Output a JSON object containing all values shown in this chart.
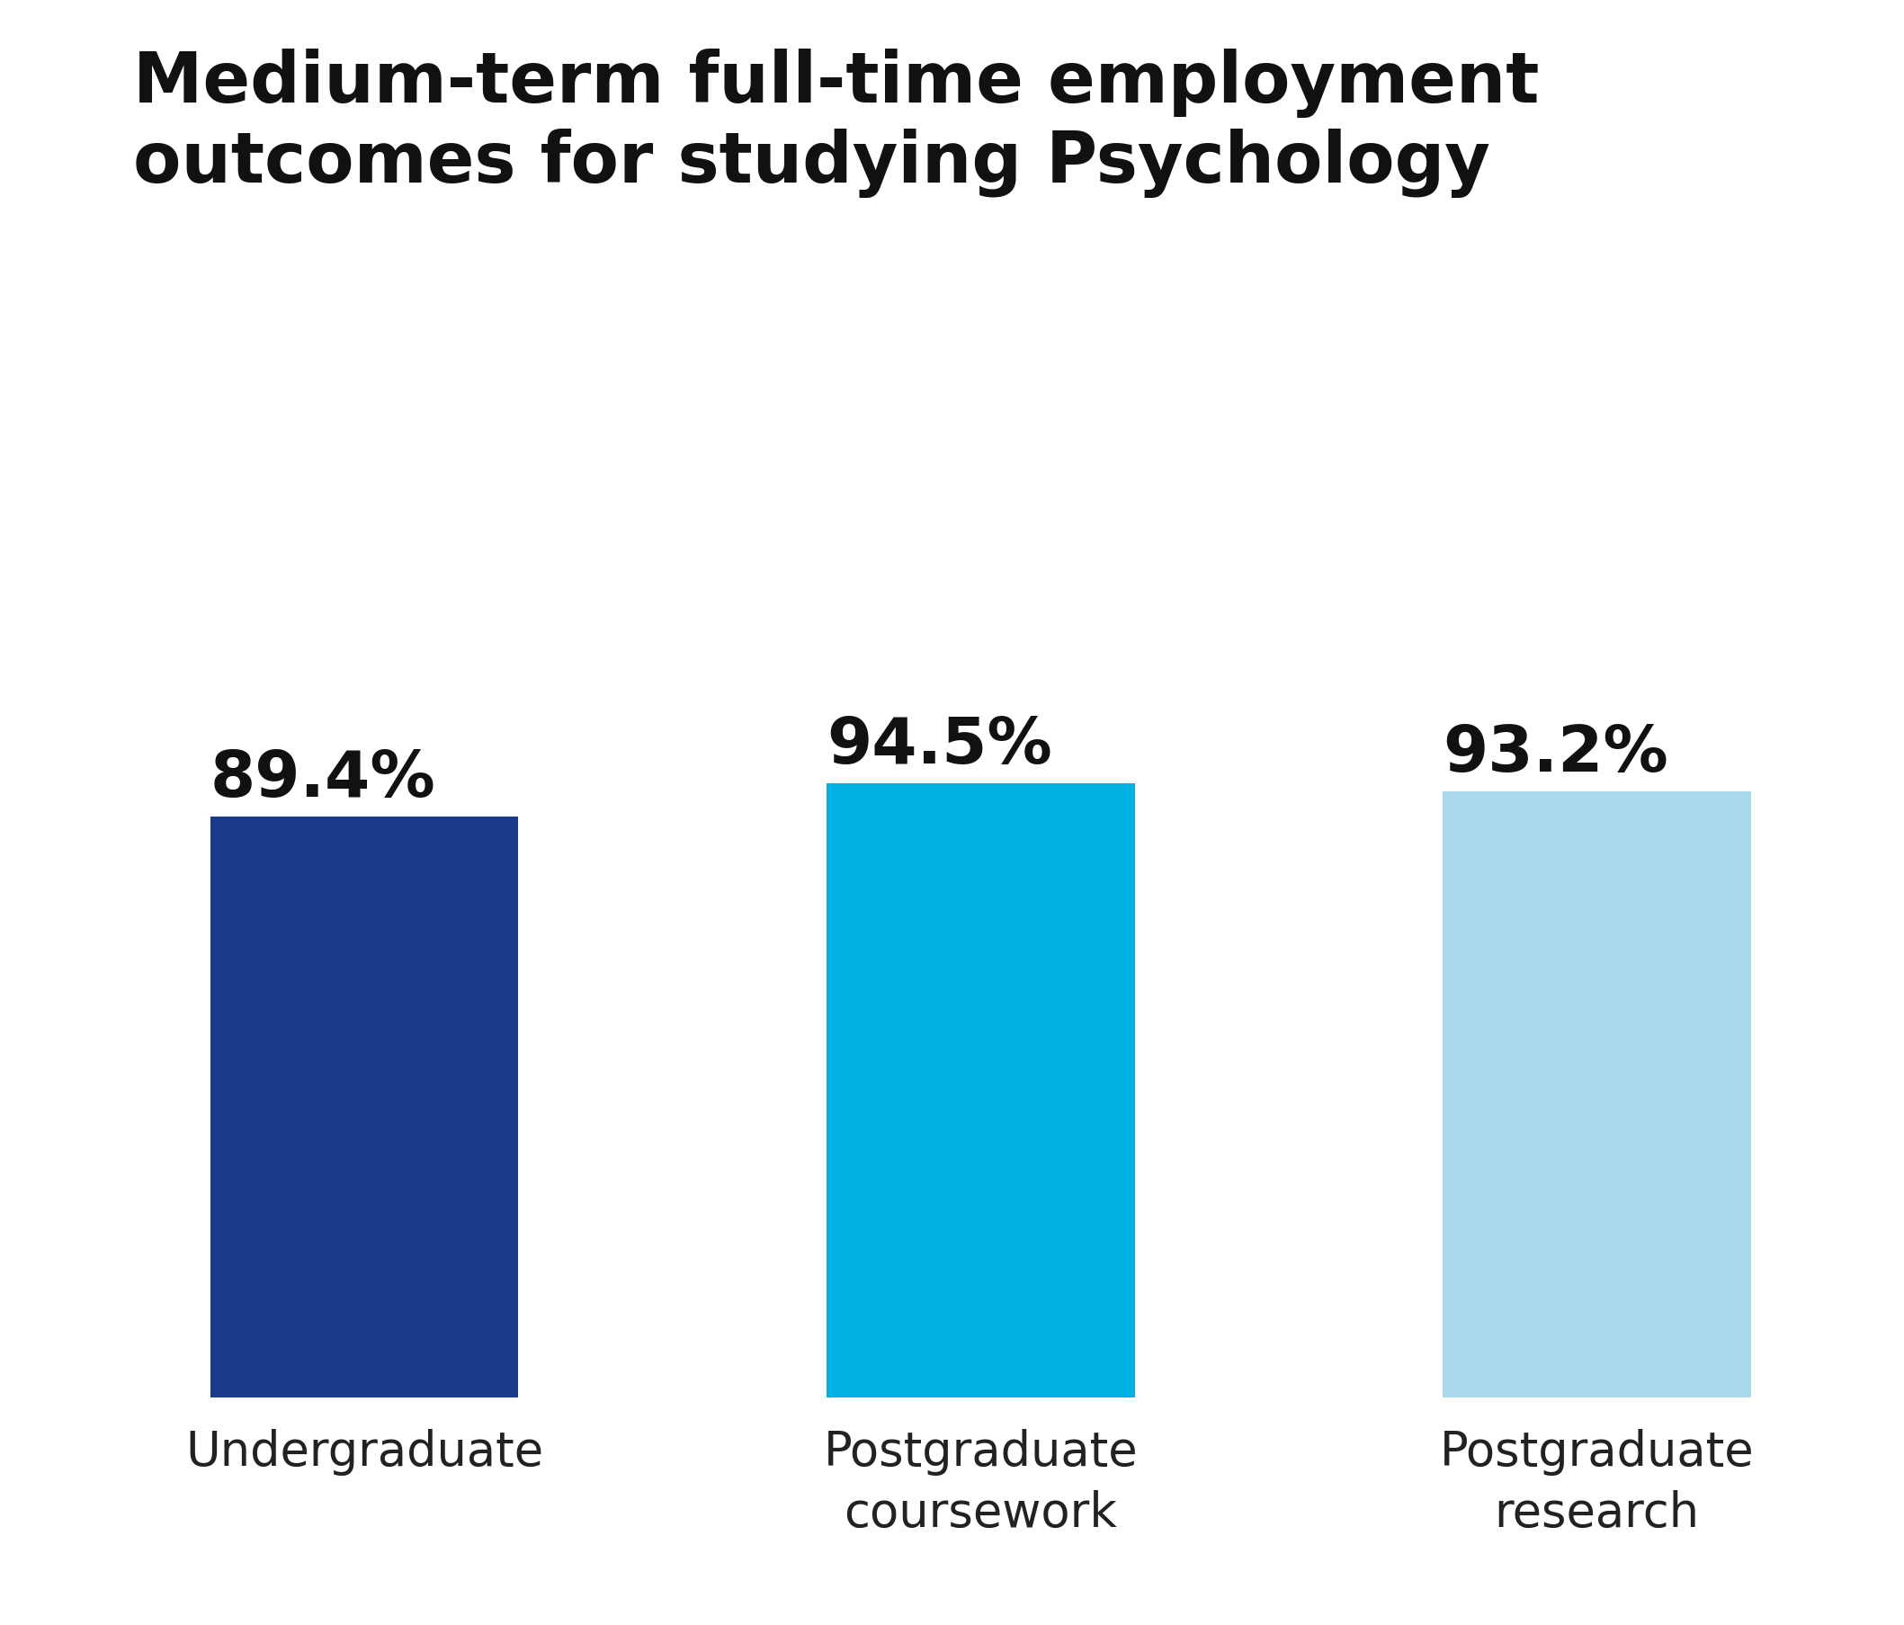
{
  "title": "Medium-term full-time employment\noutcomes for studying Psychology",
  "categories": [
    "Undergraduate",
    "Postgraduate\ncoursework",
    "Postgraduate\nresearch"
  ],
  "values": [
    89.4,
    94.5,
    93.2
  ],
  "labels": [
    "89.4%",
    "94.5%",
    "93.2%"
  ],
  "bar_colors": [
    "#1a3a8c",
    "#00b2e3",
    "#a8d8ea"
  ],
  "background_color": "#ffffff",
  "title_fontsize": 56,
  "label_fontsize": 52,
  "tick_fontsize": 38,
  "ylim": [
    0,
    110
  ],
  "bar_width": 0.5,
  "figsize": [
    21.17,
    18.07
  ]
}
